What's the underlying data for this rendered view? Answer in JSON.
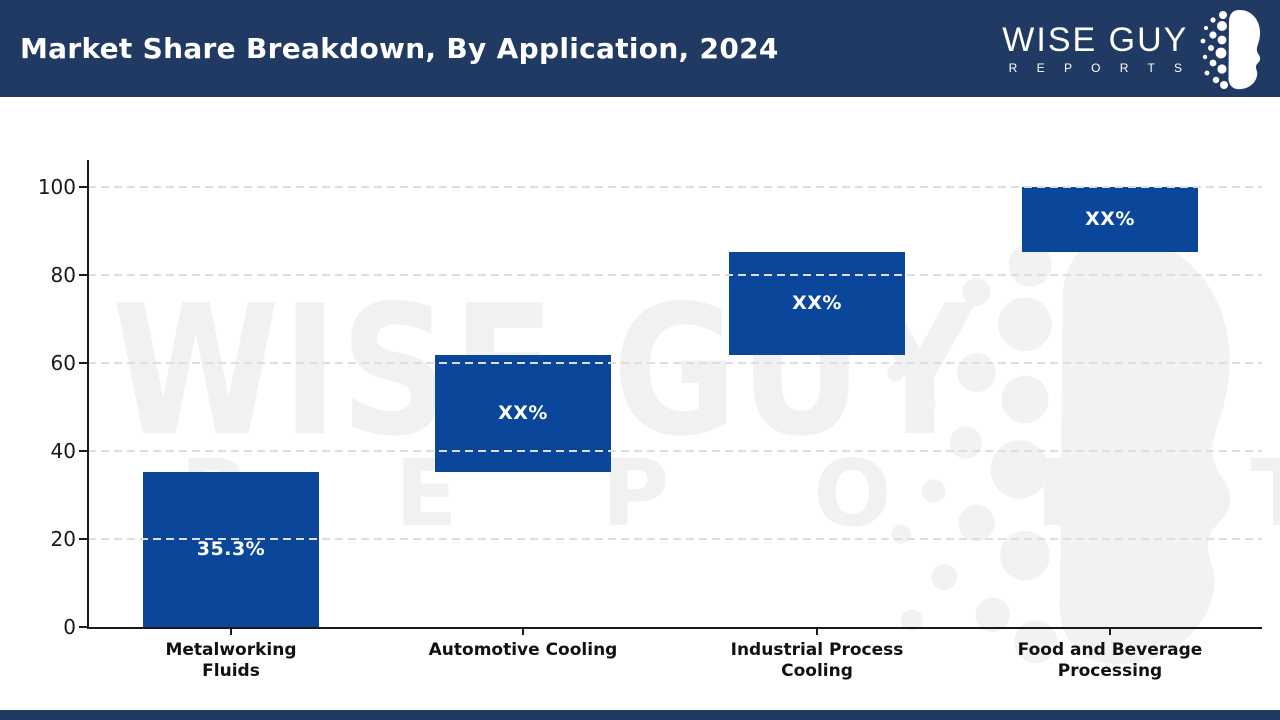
{
  "header": {
    "title": "Market Share Breakdown, By Application, 2024",
    "logo": {
      "wordmark": "WISE GUY",
      "subtext": "R E P O R T S"
    }
  },
  "watermark": {
    "wordmark": "WISE GUY",
    "subtext": "R E P O R T S"
  },
  "colors": {
    "header_bg": "#213a63",
    "footer_bg": "#213a63",
    "bar": "#0a479b",
    "gridline": "#dedede",
    "watermark": "#f1f1f1"
  },
  "chart_data": {
    "type": "bar",
    "variant": "floating-waterfall",
    "title": "Market Share Breakdown, By Application, 2024",
    "categories": [
      "Metalworking\nFluids",
      "Automotive Cooling",
      "Industrial Process\nCooling",
      "Food and Beverage\nProcessing"
    ],
    "segments": [
      {
        "category": "Metalworking Fluids",
        "start": 0,
        "end": 35.3,
        "label": "35.3%"
      },
      {
        "category": "Automotive Cooling",
        "start": 35.3,
        "end": 61.8,
        "label": "XX%"
      },
      {
        "category": "Industrial Process Cooling",
        "start": 61.8,
        "end": 85.3,
        "label": "XX%"
      },
      {
        "category": "Food and Beverage Processing",
        "start": 85.3,
        "end": 100,
        "label": "XX%"
      }
    ],
    "yticks": [
      0,
      20,
      40,
      60,
      80,
      100
    ],
    "ylim": [
      0,
      100
    ],
    "xlabel": "",
    "ylabel": "",
    "grid": "horizontal-dashed",
    "legend": "none"
  }
}
